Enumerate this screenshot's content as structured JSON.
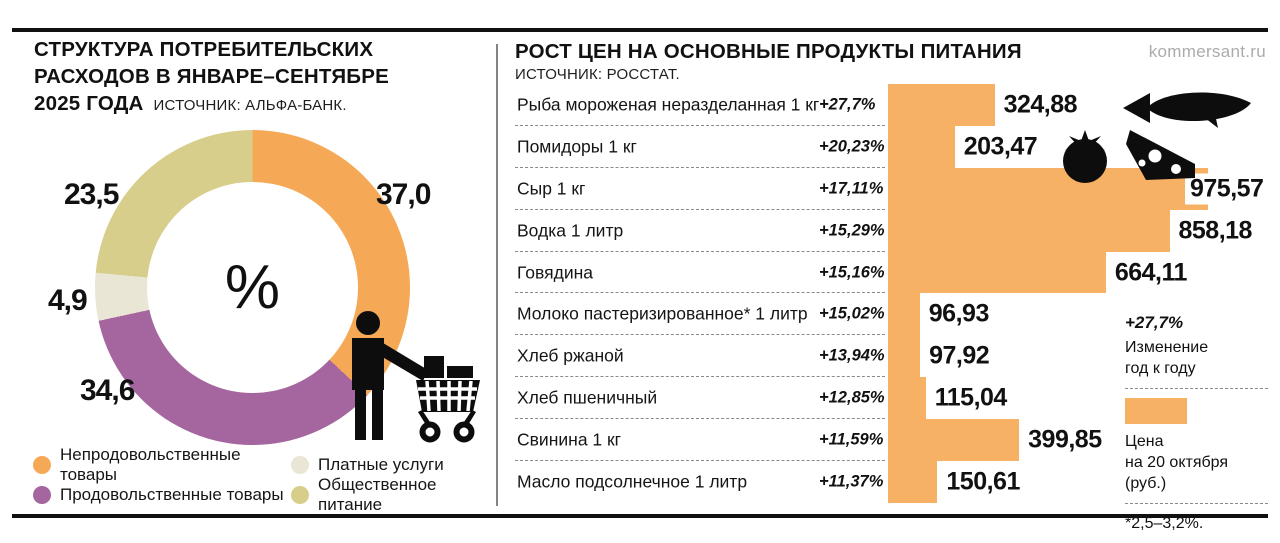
{
  "page": {
    "brand": "kommersant.ru"
  },
  "left_panel": {
    "title_lines": [
      "СТРУКТУРА ПОТРЕБИТЕЛЬСКИХ",
      "РАСХОДОВ В ЯНВАРЕ–СЕНТЯБРЕ",
      "2025 ГОДА"
    ],
    "source": "ИСТОЧНИК: АЛЬФА-БАНК.",
    "center_symbol": "%"
  },
  "right_panel": {
    "title": "РОСТ ЦЕН НА ОСНОВНЫЕ ПРОДУКТЫ ПИТАНИЯ",
    "source": "ИСТОЧНИК: РОССТАТ.",
    "legend": {
      "change_example": "+27,7%",
      "change_caption_lines": [
        "Изменение",
        "год к году"
      ],
      "price_caption_lines": [
        "Цена",
        "на 20 октября",
        "(руб.)"
      ],
      "footnote": "*2,5–3,2%."
    }
  },
  "chart_data": [
    {
      "type": "pie",
      "subtype": "donut",
      "title": "Структура потребительских расходов в январе–сентябре 2025 года",
      "unit": "%",
      "direction": "clockwise",
      "start_angle_deg": 0,
      "slices": [
        {
          "label": "Непродовольственные товары",
          "value": 37.0,
          "value_label": "37,0",
          "color": "#F5A956"
        },
        {
          "label": "Продовольственные товары",
          "value": 34.6,
          "value_label": "34,6",
          "color": "#A566A0"
        },
        {
          "label": "Платные услуги",
          "value": 4.9,
          "value_label": "4,9",
          "color": "#E9E6D5"
        },
        {
          "label": "Общественное питание",
          "value": 23.5,
          "value_label": "23,5",
          "color": "#D7CE8B"
        }
      ]
    },
    {
      "type": "bar",
      "orientation": "horizontal",
      "title": "Рост цен на основные продукты питания",
      "bar_color": "#F7B164",
      "value_unit": "руб.",
      "xlim": [
        0,
        975.57
      ],
      "rows": [
        {
          "name": "Рыба мороженая неразделанная 1 кг",
          "change": "+27,7%",
          "price": 324.88,
          "price_label": "324,88"
        },
        {
          "name": "Помидоры 1 кг",
          "change": "+20,23%",
          "price": 203.47,
          "price_label": "203,47"
        },
        {
          "name": "Сыр 1 кг",
          "change": "+17,11%",
          "price": 975.57,
          "price_label": "975,57"
        },
        {
          "name": "Водка 1 литр",
          "change": "+15,29%",
          "price": 858.18,
          "price_label": "858,18"
        },
        {
          "name": "Говядина",
          "change": "+15,16%",
          "price": 664.11,
          "price_label": "664,11"
        },
        {
          "name": "Молоко пастеризированное* 1 литр",
          "change": "+15,02%",
          "price": 96.93,
          "price_label": "96,93"
        },
        {
          "name": "Хлеб ржаной",
          "change": "+13,94%",
          "price": 97.92,
          "price_label": "97,92"
        },
        {
          "name": "Хлеб пшеничный",
          "change": "+12,85%",
          "price": 115.04,
          "price_label": "115,04"
        },
        {
          "name": "Свинина 1 кг",
          "change": "+11,59%",
          "price": 399.85,
          "price_label": "399,85"
        },
        {
          "name": "Масло подсолнечное 1 литр",
          "change": "+11,37%",
          "price": 150.61,
          "price_label": "150,61"
        }
      ],
      "decorative_icons": [
        "fish",
        "tomato",
        "cheese"
      ]
    }
  ]
}
